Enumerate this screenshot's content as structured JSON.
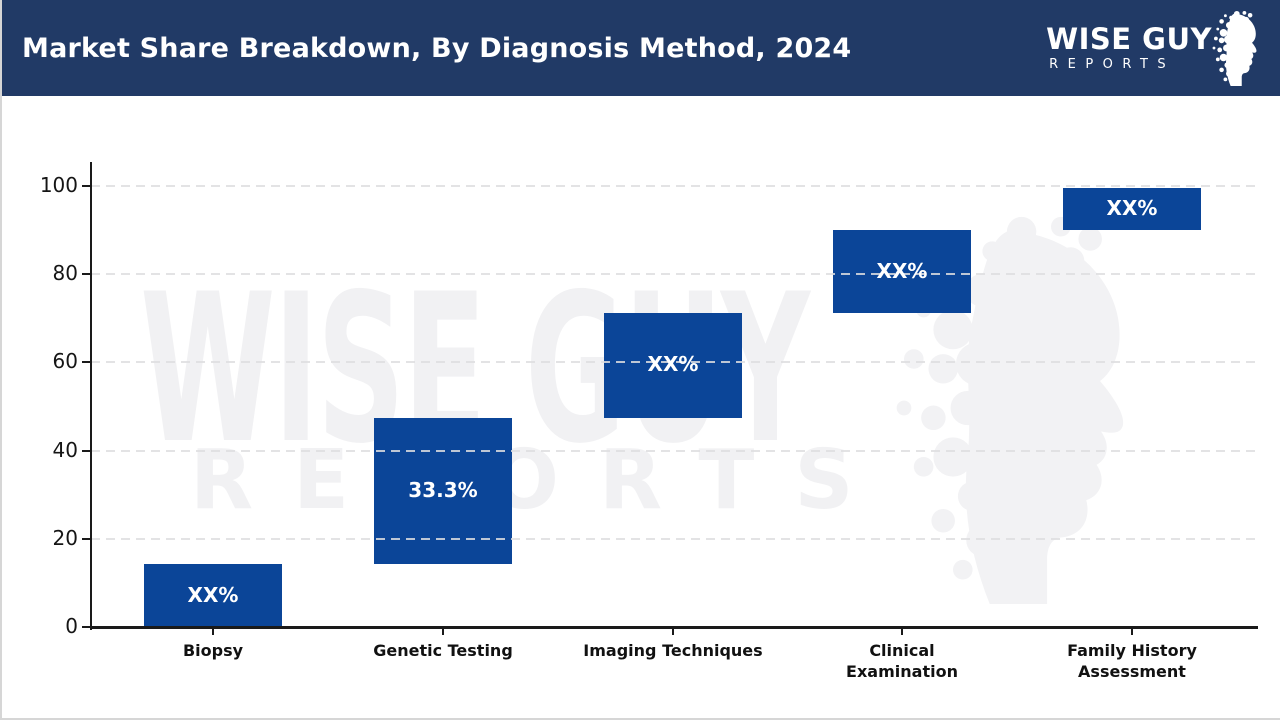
{
  "header": {
    "title": "Market Share Breakdown, By Diagnosis Method, 2024",
    "logo": {
      "line1": "WISE GUY",
      "line2": "REPORTS"
    }
  },
  "watermark": {
    "line1": "WISE GUY",
    "line2": "REPORTS"
  },
  "colors": {
    "header_bg": "#213A66",
    "bar": "#0B4598",
    "bar_label": "#ffffff",
    "grid": "#dedee0",
    "axis": "#1a1a1a",
    "watermark": "#f1f1f3"
  },
  "chart_data": {
    "type": "bar",
    "subtype": "waterfall",
    "title": "Market Share Breakdown, By Diagnosis Method, 2024",
    "categories": [
      "Biopsy",
      "Genetic Testing",
      "Imaging Techniques",
      "Clinical\nExamination",
      "Family History\nAssessment"
    ],
    "segments": [
      {
        "category": "Biopsy",
        "start": 0,
        "end": 14.2,
        "label": "XX%"
      },
      {
        "category": "Genetic Testing",
        "start": 14.2,
        "end": 47.5,
        "label": "33.3%"
      },
      {
        "category": "Imaging Techniques",
        "start": 47.5,
        "end": 71.2,
        "label": "XX%"
      },
      {
        "category": "Clinical Examination",
        "start": 71.2,
        "end": 90.0,
        "label": "XX%"
      },
      {
        "category": "Family History Assessment",
        "start": 90.0,
        "end": 99.6,
        "label": "XX%"
      }
    ],
    "xlabel": "",
    "ylabel": "",
    "ylim": [
      0,
      100
    ],
    "yticks": [
      0,
      20,
      40,
      60,
      80,
      100
    ],
    "grid": "horizontal-dashed",
    "legend": "none"
  }
}
